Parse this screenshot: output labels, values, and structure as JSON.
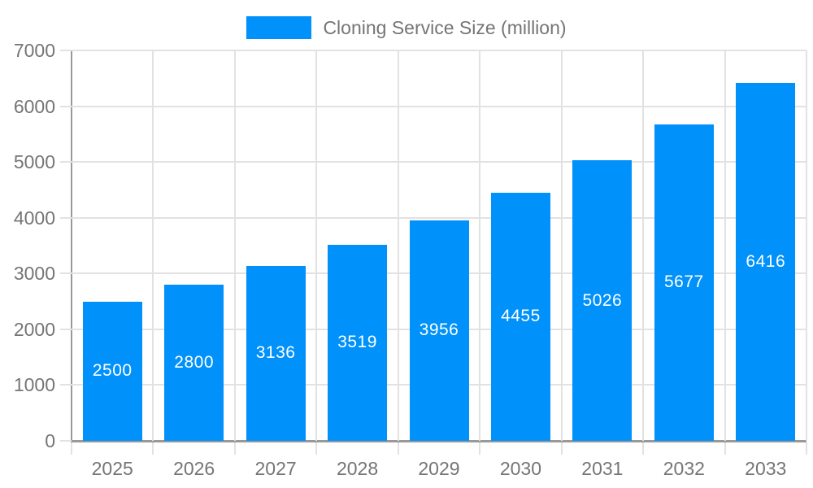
{
  "chart_data": {
    "type": "bar",
    "title": "Cloning Service Size (million)",
    "categories": [
      "2025",
      "2026",
      "2027",
      "2028",
      "2029",
      "2030",
      "2031",
      "2032",
      "2033"
    ],
    "series": [
      {
        "name": "Cloning Service Size (million)",
        "values": [
          2500,
          2800,
          3136,
          3519,
          3956,
          4455,
          5026,
          5677,
          6416
        ]
      }
    ],
    "xlabel": "",
    "ylabel": "",
    "ylim": [
      0,
      7000
    ],
    "yticks": [
      0,
      1000,
      2000,
      3000,
      4000,
      5000,
      6000,
      7000
    ],
    "grid": true,
    "legend_position": "top-center",
    "bar_value_labels": "inside-center",
    "colors": {
      "bar": "#0091fa",
      "bar_label": "#ffffff",
      "axis_line": "#999999",
      "grid_line": "#e2e2e2",
      "tick_text": "#757575",
      "background": "#ffffff"
    }
  }
}
